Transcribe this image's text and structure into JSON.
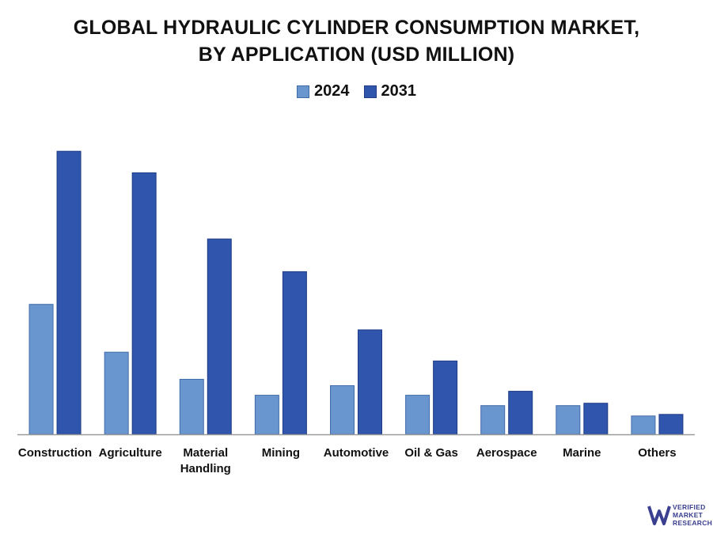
{
  "chart_data": {
    "type": "bar",
    "title_line1": "GLOBAL HYDRAULIC CYLINDER CONSUMPTION MARKET,",
    "title_line2": "BY APPLICATION (USD MILLION)",
    "categories": [
      "Construction",
      "Agriculture",
      "Material Handling",
      "Mining",
      "Automotive",
      "Oil & Gas",
      "Aerospace",
      "Marine",
      "Others"
    ],
    "category_lines": [
      [
        "Construction"
      ],
      [
        "Agriculture"
      ],
      [
        "Material",
        "Handling"
      ],
      [
        "Mining"
      ],
      [
        "Automotive"
      ],
      [
        "Oil & Gas"
      ],
      [
        "Aerospace"
      ],
      [
        "Marine"
      ],
      [
        "Others"
      ]
    ],
    "series": [
      {
        "name": "2024",
        "color": "#6a96cf",
        "values": [
          163,
          103,
          69,
          49,
          61,
          49,
          36,
          36,
          23
        ]
      },
      {
        "name": "2031",
        "color": "#2f55ad",
        "values": [
          355,
          328,
          245,
          204,
          131,
          92,
          54,
          39,
          25
        ]
      }
    ],
    "ylim": [
      0,
      380
    ],
    "grid": false,
    "legend_position": "top-center",
    "xlabel": "",
    "ylabel": ""
  },
  "branding": {
    "logo_icon": "vmr-logo-icon",
    "logo_lines": [
      "VERIFIED",
      "MARKET",
      "RESEARCH"
    ]
  }
}
